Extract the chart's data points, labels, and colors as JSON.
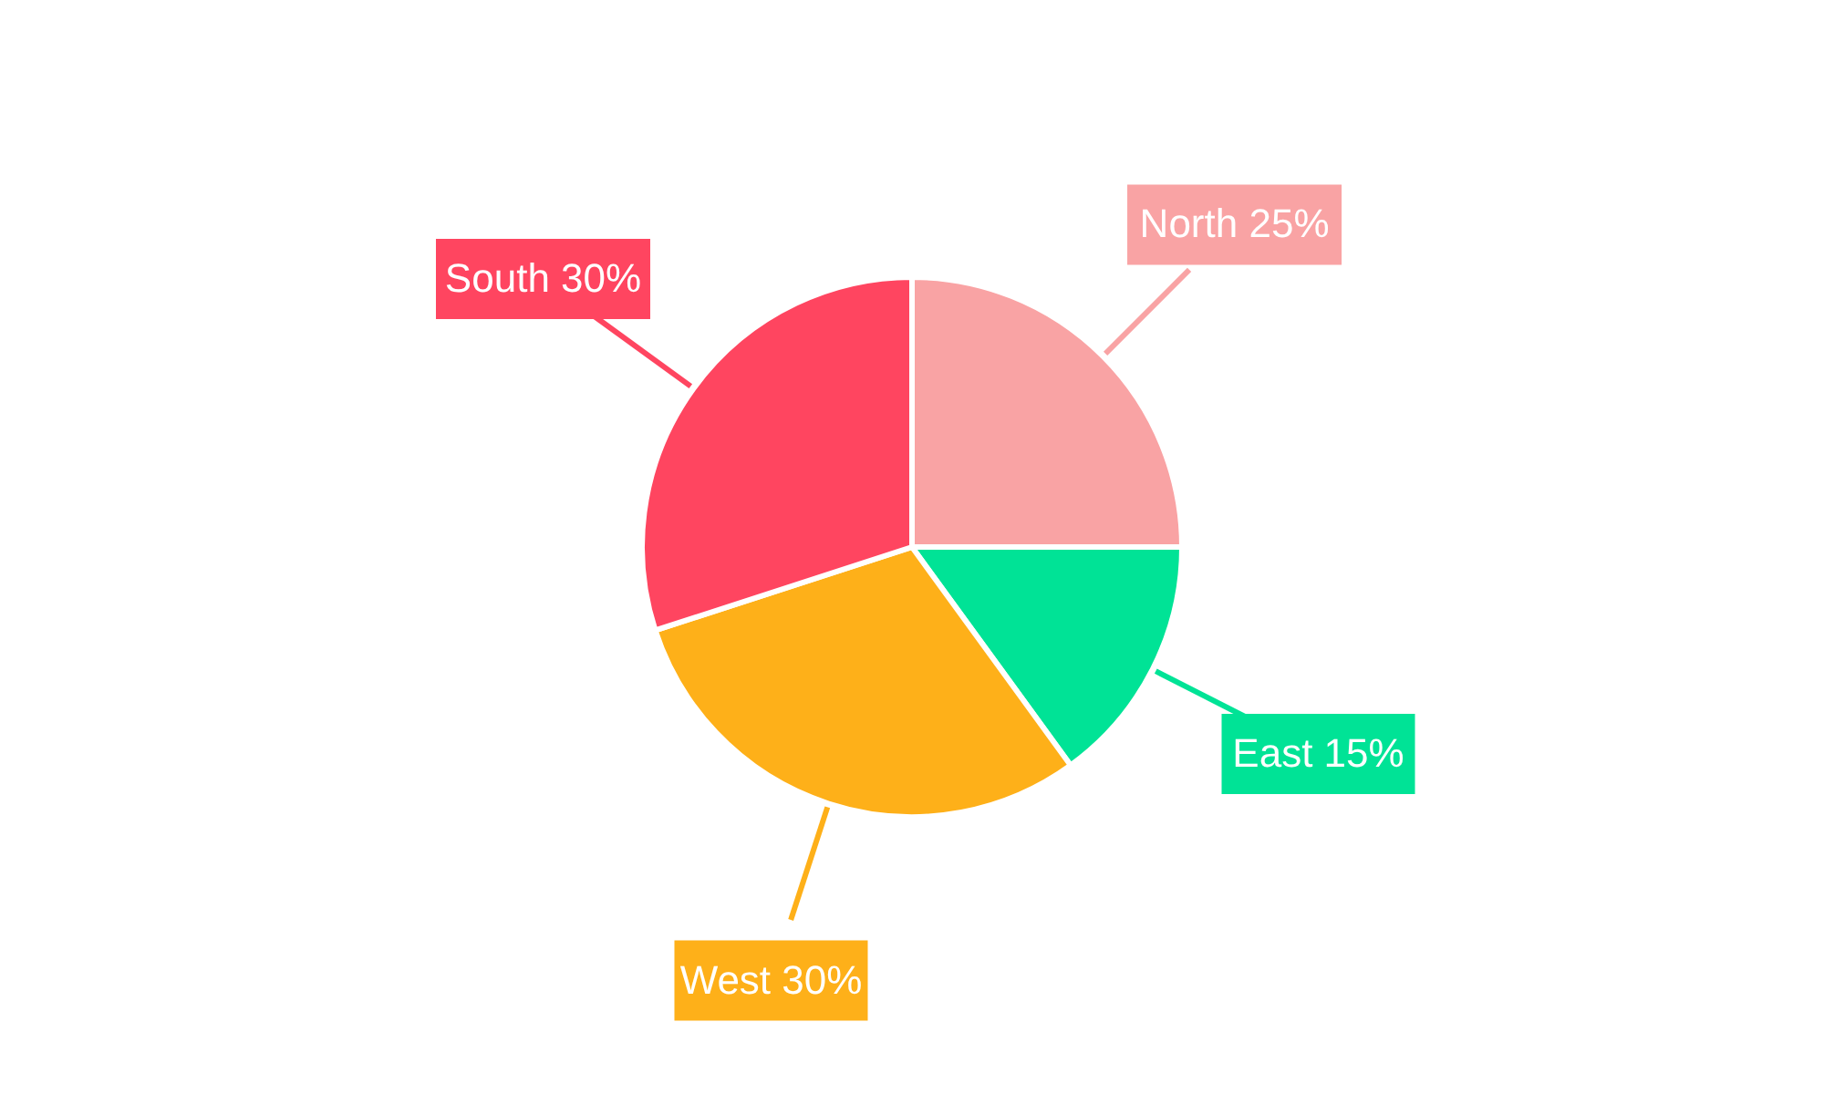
{
  "chart_data": {
    "type": "pie",
    "categories": [
      "North",
      "East",
      "West",
      "South"
    ],
    "values": [
      25,
      15,
      30,
      30
    ],
    "value_labels": [
      "25%",
      "15%",
      "30%",
      "30%"
    ],
    "colors": [
      "#f9a3a4",
      "#00e396",
      "#feb019",
      "#ff4560"
    ]
  }
}
